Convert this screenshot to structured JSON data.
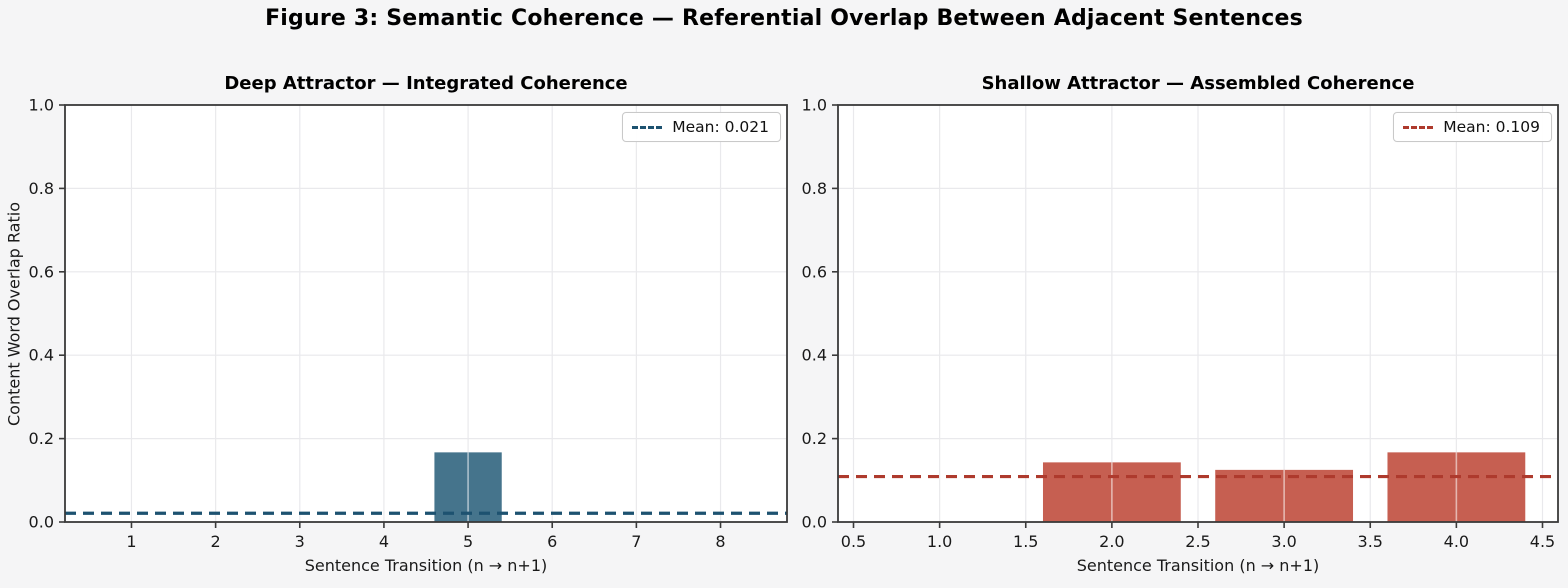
{
  "figure_title": "Figure 3: Semantic Coherence — Referential Overlap Between Adjacent Sentences",
  "colors": {
    "figure_bg": "#f5f5f6",
    "plot_bg": "#ffffff",
    "grid": "#e9e9ec",
    "grid_over_bar": "#ffffff",
    "spine": "#3a3a3a",
    "text": "#1a1a1a"
  },
  "chart_data": [
    {
      "type": "bar",
      "title": "Deep Attractor — Integrated Coherence",
      "xlabel": "Sentence Transition (n → n+1)",
      "ylabel": "Content Word Overlap Ratio",
      "x": [
        1,
        2,
        3,
        4,
        5,
        6,
        7,
        8
      ],
      "values": [
        0,
        0,
        0,
        0,
        0.167,
        0,
        0,
        0
      ],
      "bar_width": 0.8,
      "bar_color": "#45748c",
      "mean": 0.021,
      "mean_label": "Mean: 0.021",
      "mean_color": "#1d5270",
      "xlim": [
        0.21,
        8.79
      ],
      "ylim": [
        0,
        1.0
      ],
      "xticks": [
        1,
        2,
        3,
        4,
        5,
        6,
        7,
        8
      ],
      "xtick_labels": [
        "1",
        "2",
        "3",
        "4",
        "5",
        "6",
        "7",
        "8"
      ],
      "yticks": [
        0,
        0.2,
        0.4,
        0.6,
        0.8,
        1.0
      ],
      "ytick_labels": [
        "0.0",
        "0.2",
        "0.4",
        "0.6",
        "0.8",
        "1.0"
      ],
      "grid": true,
      "legend_position": "upper right"
    },
    {
      "type": "bar",
      "title": "Shallow Attractor — Assembled Coherence",
      "xlabel": "Sentence Transition (n → n+1)",
      "ylabel": "",
      "x": [
        1,
        2,
        3,
        4
      ],
      "values": [
        0,
        0.143,
        0.125,
        0.167
      ],
      "bar_width": 0.8,
      "bar_color": "#c65f51",
      "mean": 0.109,
      "mean_label": "Mean: 0.109",
      "mean_color": "#ae3a2d",
      "xlim": [
        0.41,
        4.59
      ],
      "ylim": [
        0,
        1.0
      ],
      "xticks": [
        0.5,
        1.0,
        1.5,
        2.0,
        2.5,
        3.0,
        3.5,
        4.0,
        4.5
      ],
      "xtick_labels": [
        "0.5",
        "1.0",
        "1.5",
        "2.0",
        "2.5",
        "3.0",
        "3.5",
        "4.0",
        "4.5"
      ],
      "yticks": [
        0,
        0.2,
        0.4,
        0.6,
        0.8,
        1.0
      ],
      "ytick_labels": [
        "0.0",
        "0.2",
        "0.4",
        "0.6",
        "0.8",
        "1.0"
      ],
      "grid": true,
      "legend_position": "upper right"
    }
  ]
}
